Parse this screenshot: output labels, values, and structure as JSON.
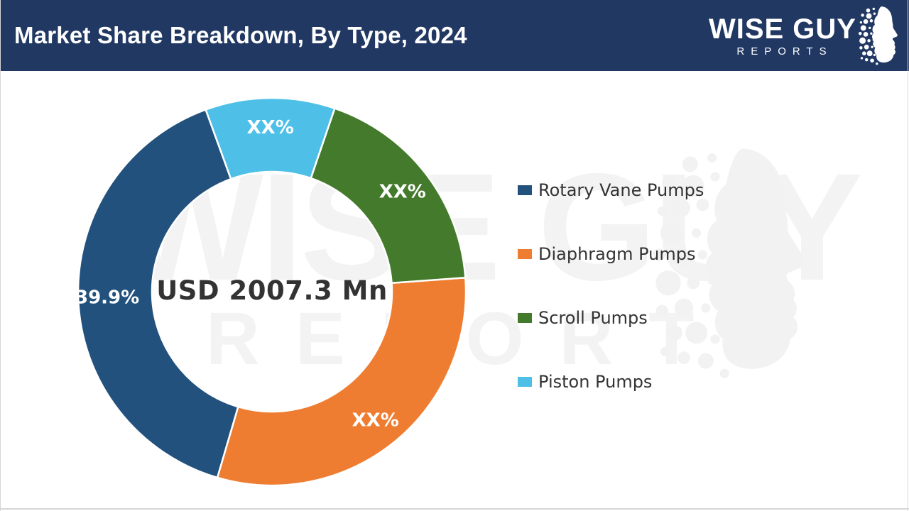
{
  "header": {
    "title": "Market Share Breakdown, By Type, 2024",
    "bg_color": "#213863",
    "logo": {
      "wordmark": "WISE GUY",
      "subtitle": "REPORTS"
    }
  },
  "watermark": {
    "wordmark": "WISE GUY",
    "subtitle": "REPORTS"
  },
  "chart_data": {
    "type": "donut",
    "title": "Market Share Breakdown, By Type, 2024",
    "center_label": "USD 2007.3 Mn",
    "start_angle_deg": 110,
    "direction": "counterclockwise",
    "inner_radius_ratio": 0.62,
    "legend_position": "right",
    "segments": [
      {
        "label": "Rotary Vane Pumps",
        "value_pct": 39.9,
        "display": "39.9%",
        "color": "#21517c"
      },
      {
        "label": "Diaphragm Pumps",
        "value_pct": 30.7,
        "display": "XX%",
        "color": "#ee7d31"
      },
      {
        "label": "Scroll Pumps",
        "value_pct": 18.6,
        "display": "XX%",
        "color": "#447a2b"
      },
      {
        "label": "Piston Pumps",
        "value_pct": 10.8,
        "display": "XX%",
        "color": "#4ec0e8"
      }
    ]
  },
  "styles": {
    "percent_label_color": "#ffffff",
    "center_label_color": "#333333",
    "legend_text_color": "#333333",
    "watermark_color": "#f3f3f3"
  }
}
